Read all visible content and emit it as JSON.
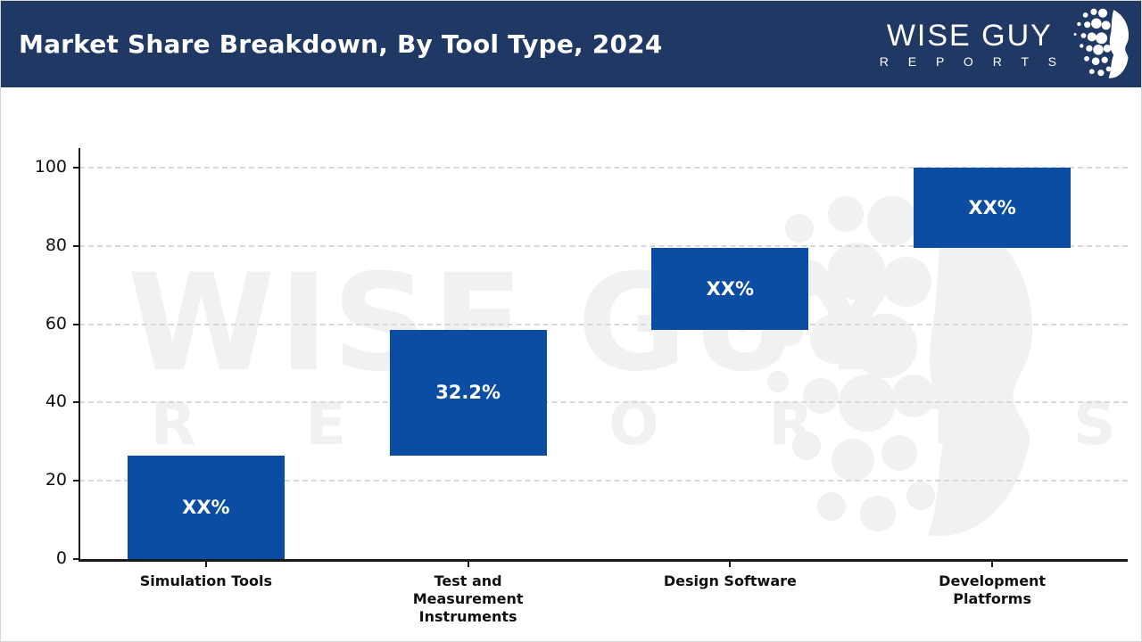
{
  "header": {
    "title": "Market Share Breakdown, By Tool Type, 2024",
    "bg_color": "#203864",
    "logo": {
      "line1": "WISE GUY",
      "line2": "R E P O R T S"
    }
  },
  "watermark": {
    "line1": "WISE GUY",
    "line2": "R E P O R T S"
  },
  "chart_data": {
    "type": "bar",
    "subtype": "waterfall",
    "title": "Market Share Breakdown, By Tool Type, 2024",
    "categories": [
      "Simulation Tools",
      "Test and\nMeasurement\nInstruments",
      "Design Software",
      "Development\nPlatforms"
    ],
    "segments": [
      {
        "category": "Simulation Tools",
        "start": 0,
        "end": 26.4,
        "label": "XX%"
      },
      {
        "category": "Test and Measurement Instruments",
        "start": 26.4,
        "end": 58.6,
        "label": "32.2%"
      },
      {
        "category": "Design Software",
        "start": 58.6,
        "end": 79.5,
        "label": "XX%"
      },
      {
        "category": "Development Platforms",
        "start": 79.5,
        "end": 100,
        "label": "XX%"
      }
    ],
    "yticks": [
      0,
      20,
      40,
      60,
      80,
      100
    ],
    "ylim": [
      0,
      105
    ],
    "xlabel": "",
    "ylabel": "",
    "grid": "horizontal-dashed",
    "legend": "none",
    "colors": {
      "bar": "#0b4da2",
      "grid": "#d9d9d9",
      "axis": "#1a1a1a",
      "value_label": "#ffffff",
      "watermark": "#f0f1f3"
    }
  }
}
